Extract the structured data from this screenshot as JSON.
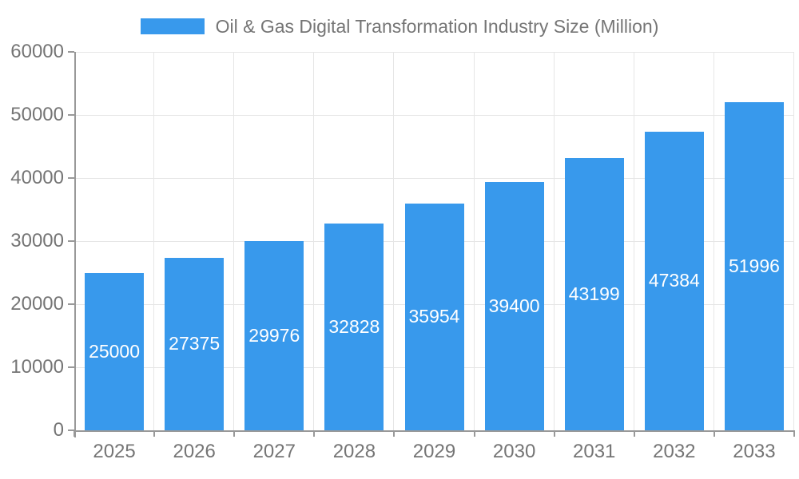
{
  "chart_data": {
    "type": "bar",
    "title": "Oil & Gas Digital Transformation Industry Size (Million)",
    "legend_position": "top",
    "categories": [
      "2025",
      "2026",
      "2027",
      "2028",
      "2029",
      "2030",
      "2031",
      "2032",
      "2033"
    ],
    "series": [
      {
        "name": "Oil & Gas Digital Transformation Industry Size (Million)",
        "values": [
          25000,
          27375,
          29976,
          32828,
          35954,
          39400,
          43199,
          47384,
          51996
        ],
        "color": "#3899EC"
      }
    ],
    "xlabel": "",
    "ylabel": "",
    "ylim": [
      0,
      60000
    ],
    "yticks": [
      0,
      10000,
      20000,
      30000,
      40000,
      50000,
      60000
    ],
    "grid": true,
    "value_labels": "inside-center",
    "value_label_color": "#ffffff",
    "axis_text_color": "#757575",
    "grid_color": "#e6e6e6",
    "axis_line_color": "#999999",
    "background_color": "#ffffff"
  }
}
